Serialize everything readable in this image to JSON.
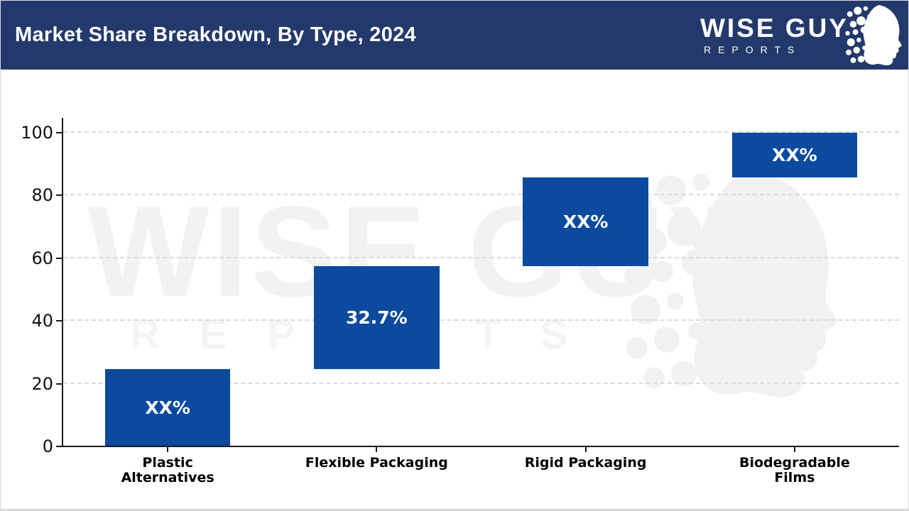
{
  "header": {
    "title": "Market Share Breakdown, By Type, 2024",
    "bg_color": "#24396B",
    "logo": {
      "name": "WISE GUY",
      "subtitle": "REPORTS"
    }
  },
  "watermark": {
    "name": "WISE GUY",
    "subtitle": "REPORTS"
  },
  "chart_data": {
    "type": "bar",
    "variant": "floating-waterfall",
    "title": "Market Share Breakdown, By Type, 2024",
    "xlabel": "",
    "ylabel": "",
    "ylim": [
      0,
      100
    ],
    "yticks": [
      0,
      20,
      40,
      60,
      80,
      100
    ],
    "grid": "horizontal dashed",
    "legend": "none",
    "bar_color": "#0B4A9E",
    "bar_label_color": "#FFFFFF",
    "categories": [
      "Plastic Alternatives",
      "Flexible Packaging",
      "Rigid Packaging",
      "Biodegradable Films"
    ],
    "category_lines": [
      [
        "Plastic",
        "Alternatives"
      ],
      [
        "Flexible Packaging"
      ],
      [
        "Rigid Packaging"
      ],
      [
        "Biodegradable",
        "Films"
      ]
    ],
    "segments": [
      {
        "category": "Plastic Alternatives",
        "start": 0,
        "end": 24.4,
        "height": 24.4,
        "label": "XX%"
      },
      {
        "category": "Flexible Packaging",
        "start": 24.4,
        "end": 57.1,
        "height": 32.7,
        "label": "32.7%"
      },
      {
        "category": "Rigid Packaging",
        "start": 57.1,
        "end": 85.4,
        "height": 28.3,
        "label": "XX%"
      },
      {
        "category": "Biodegradable Films",
        "start": 85.4,
        "end": 99.6,
        "height": 14.2,
        "label": "XX%"
      }
    ]
  }
}
